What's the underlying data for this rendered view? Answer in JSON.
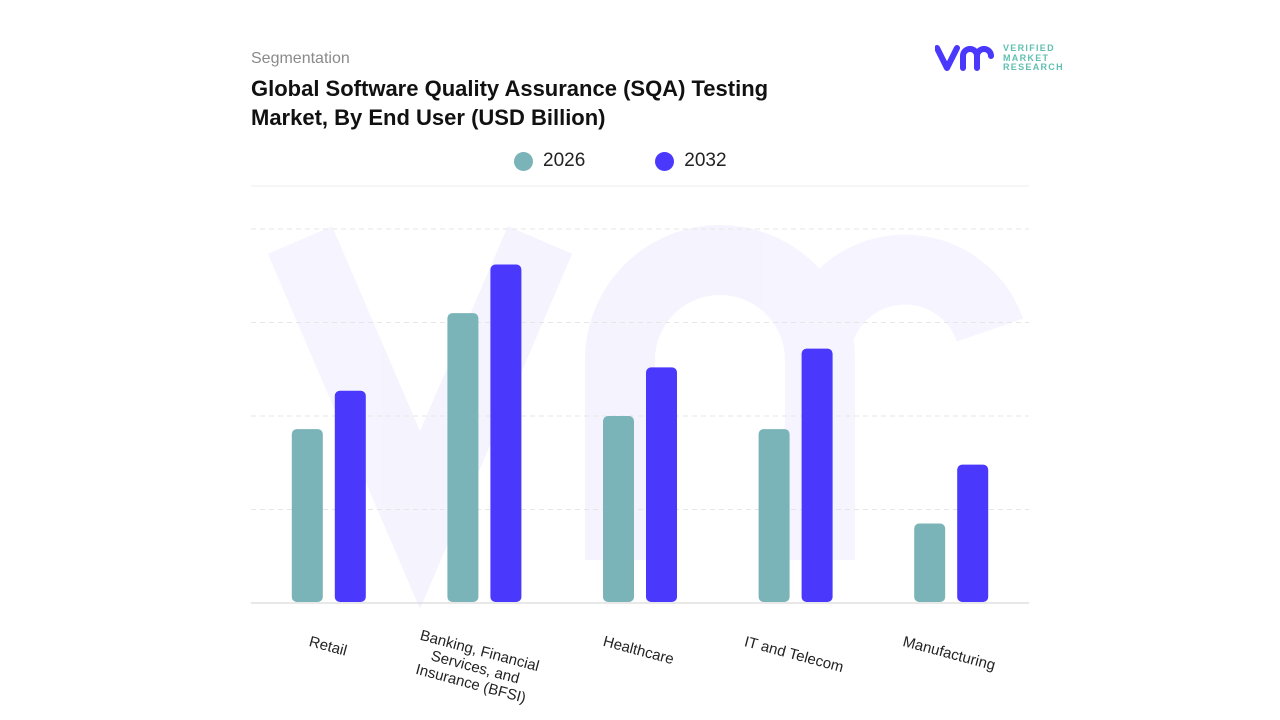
{
  "header": {
    "segment_label": "Segmentation",
    "title": "Global Software Quality Assurance (SQA) Testing Market, By End User (USD Billion)"
  },
  "logo": {
    "text_lines": [
      "VERIFIED",
      "MARKET",
      "RESEARCH"
    ],
    "mark": "vmr"
  },
  "colors": {
    "2026": "#7ab3b8",
    "2032": "#4a38fd",
    "grid": "#e3e3e3"
  },
  "chart_data": {
    "type": "bar",
    "title": "Global Software Quality Assurance (SQA) Testing Market, By End User (USD Billion)",
    "categories": [
      "Retail",
      "Banking, Financial Services, and Insurance (BFSI)",
      "Healthcare",
      "IT and Telecom",
      "Manufacturing"
    ],
    "category_lines": [
      [
        "Retail"
      ],
      [
        "Banking, Financial",
        "Services, and",
        "Insurance (BFSI)"
      ],
      [
        "Healthcare"
      ],
      [
        "IT and Telecom"
      ],
      [
        "Manufacturing"
      ]
    ],
    "series": [
      {
        "name": "2026",
        "values": [
          1.86,
          3.1,
          2.0,
          1.86,
          0.85
        ]
      },
      {
        "name": "2032",
        "values": [
          2.27,
          3.62,
          2.52,
          2.72,
          1.48
        ]
      }
    ],
    "xlabel": "",
    "ylabel": "",
    "ylim": [
      0,
      4
    ],
    "grid": true,
    "y_axis_labels_shown": false,
    "legend_position": "top"
  }
}
